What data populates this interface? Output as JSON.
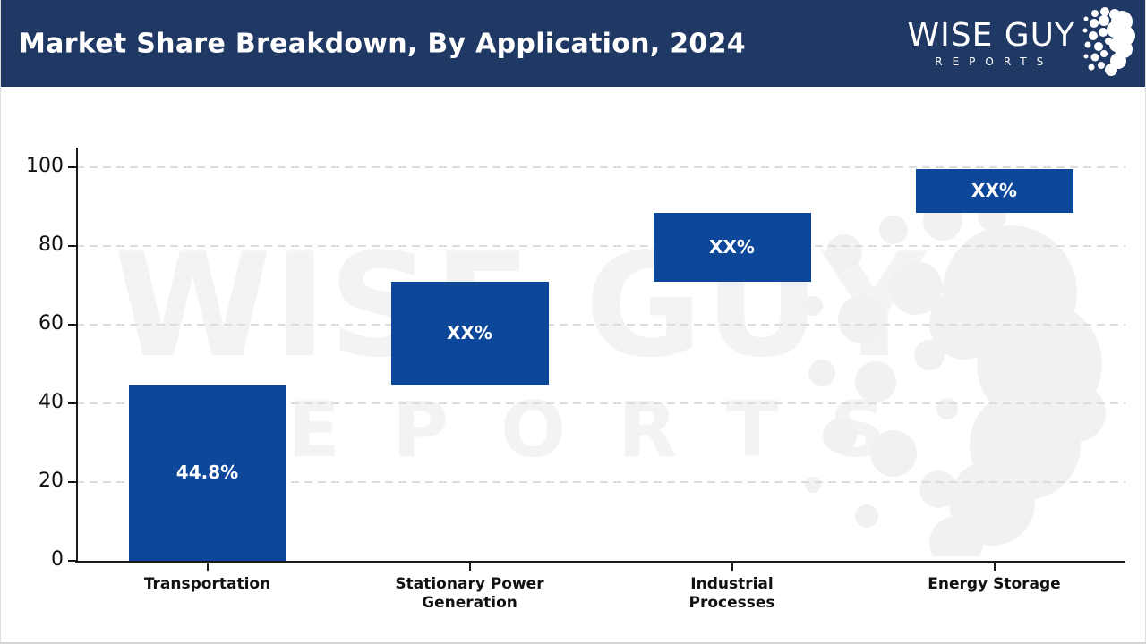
{
  "header": {
    "title": "Market Share Breakdown, By Application, 2024",
    "logo": {
      "name": "WISE GUY",
      "sub": "REPORTS"
    }
  },
  "watermark": {
    "line1": "WISE GUY",
    "line2": "REPORTS"
  },
  "chart_data": {
    "type": "bar",
    "subtype": "waterfall",
    "title": "Market Share Breakdown, By Application, 2024",
    "categories": [
      "Transportation",
      "Stationary Power Generation",
      "Industrial Processes",
      "Energy Storage"
    ],
    "series": [
      {
        "name": "Market share (%)",
        "segments": [
          {
            "category": "Transportation",
            "start": 0,
            "end": 44.8,
            "label": "44.8%"
          },
          {
            "category": "Stationary Power Generation",
            "start": 44.8,
            "end": 71,
            "label": "XX%"
          },
          {
            "category": "Industrial Processes",
            "start": 71,
            "end": 88.5,
            "label": "XX%"
          },
          {
            "category": "Energy Storage",
            "start": 88.5,
            "end": 99.5,
            "label": "XX%"
          }
        ]
      }
    ],
    "xlabel": "",
    "ylabel": "",
    "yticks": [
      0,
      20,
      40,
      60,
      80,
      100
    ],
    "ylim": [
      0,
      105
    ],
    "grid": "horizontal-dashed",
    "legend": "none",
    "colors": {
      "bar": "#0c4799",
      "bar_label": "#ffffff",
      "header_bg": "#203864",
      "axis": "#1a1a1a",
      "gridline": "#dcdcdc",
      "watermark": "#f3f3f5"
    }
  }
}
